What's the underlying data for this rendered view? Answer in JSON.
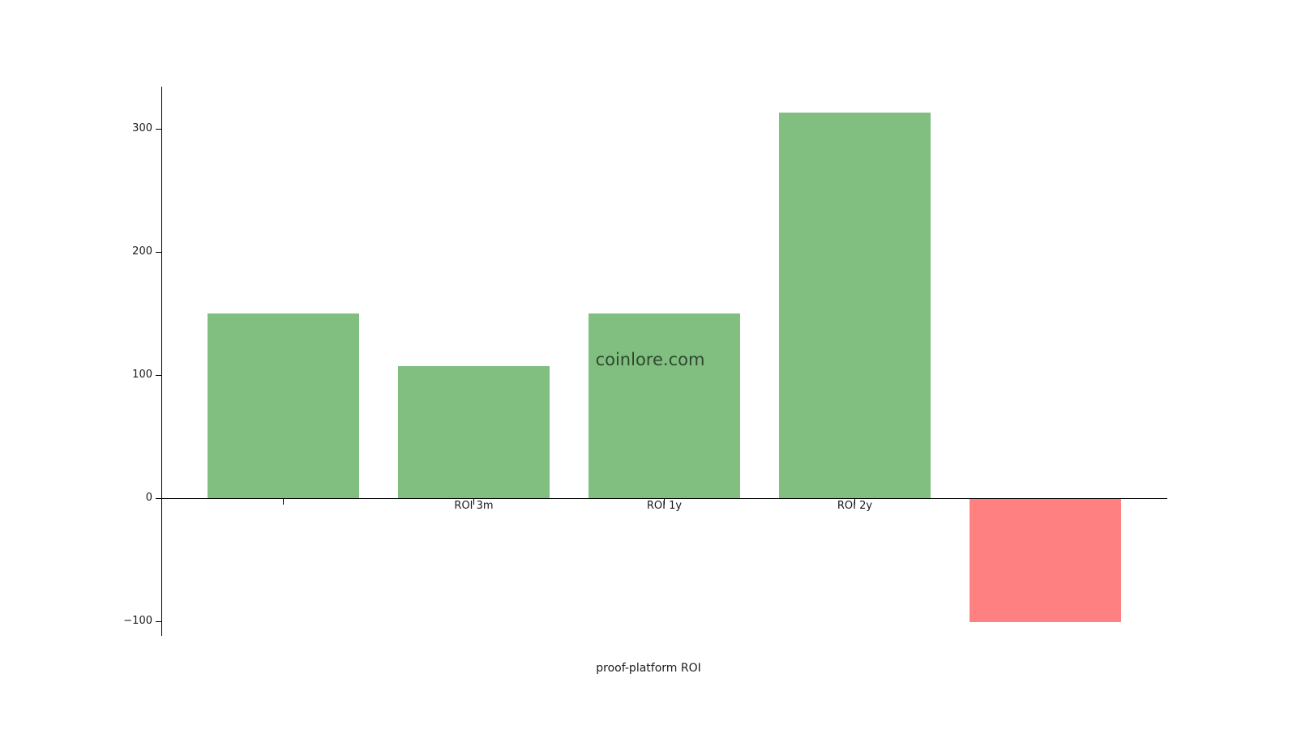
{
  "watermark_text": "coinlore.com",
  "chart_data": {
    "type": "bar",
    "title": "",
    "xlabel": "proof-platform ROI",
    "ylabel": "",
    "categories": [
      "",
      "ROI 3m",
      "ROI 1y",
      "ROI 2y",
      ""
    ],
    "values": [
      150,
      107,
      150,
      313,
      -100
    ],
    "bar_colors": [
      "#80bf80",
      "#80bf80",
      "#80bf80",
      "#80bf80",
      "#ff8080"
    ],
    "y_ticks": [
      300,
      200,
      100,
      0,
      -100
    ],
    "y_tick_labels": [
      "300",
      "200",
      "100",
      "0",
      "−100"
    ],
    "ylim": [
      -112,
      334
    ],
    "grid": false,
    "legend": "none",
    "colors": {
      "positive": "#80bf80",
      "negative": "#ff8080",
      "axis": "#000000",
      "tick_text": "#1a1a1a",
      "watermark": "rgba(0,0,0,0.64)"
    }
  }
}
